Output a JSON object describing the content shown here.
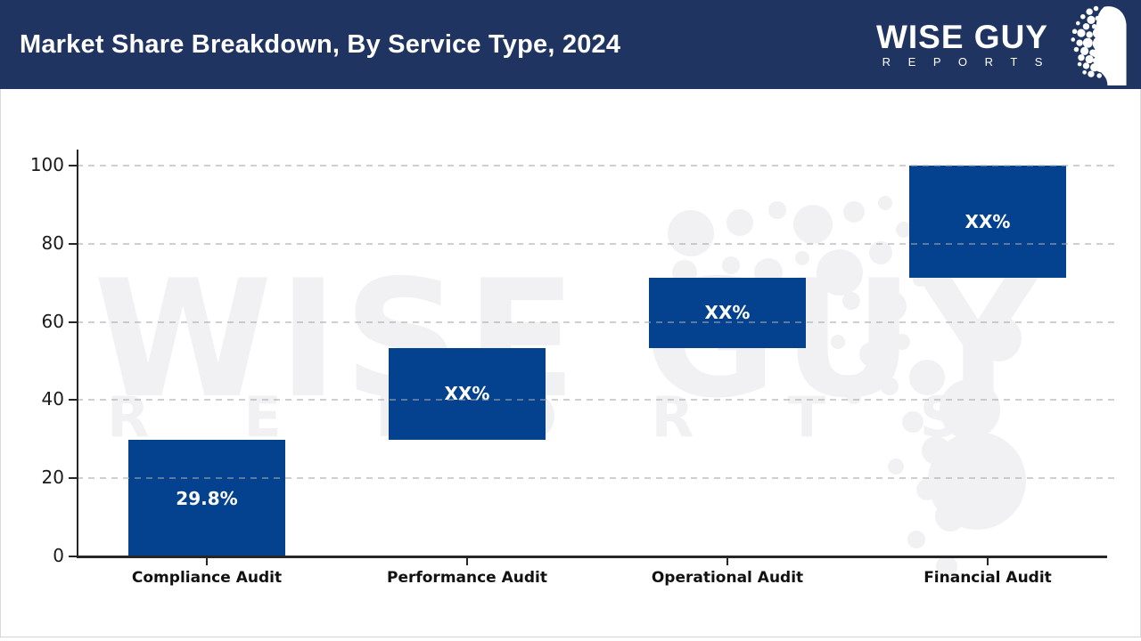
{
  "header": {
    "title": "Market Share Breakdown, By Service Type, 2024",
    "logo": {
      "line1": "WISE GUY",
      "line2": "R E P O R T S"
    }
  },
  "watermark": {
    "line1": "WISE GUY",
    "line2": "R E P O R T S"
  },
  "chart_data": {
    "type": "bar",
    "subtype": "floating-waterfall",
    "title": "Market Share Breakdown, By Service Type, 2024",
    "categories": [
      "Compliance Audit",
      "Performance Audit",
      "Operational Audit",
      "Financial Audit"
    ],
    "segments": [
      {
        "category": "Compliance Audit",
        "start": 0,
        "end": 29.8,
        "label": "29.8%"
      },
      {
        "category": "Performance Audit",
        "start": 29.8,
        "end": 53.4,
        "label": "XX%"
      },
      {
        "category": "Operational Audit",
        "start": 53.4,
        "end": 71.4,
        "label": "XX%"
      },
      {
        "category": "Financial Audit",
        "start": 71.4,
        "end": 100,
        "label": "XX%"
      }
    ],
    "xlabel": "",
    "ylabel": "",
    "yticks": [
      0,
      20,
      40,
      60,
      80,
      100
    ],
    "ylim": [
      0,
      104
    ],
    "grid": "dashed-horizontal",
    "legend": "none",
    "bar_color": "#04418f",
    "value_label_color": "#ffffff"
  },
  "colors": {
    "header_bg": "#1f3460",
    "bar": "#04418f",
    "axis": "#262626",
    "grid": "#a8a8a8",
    "watermark": "#f1f1f4",
    "frame_border": "#dadada",
    "text": "#111111"
  }
}
